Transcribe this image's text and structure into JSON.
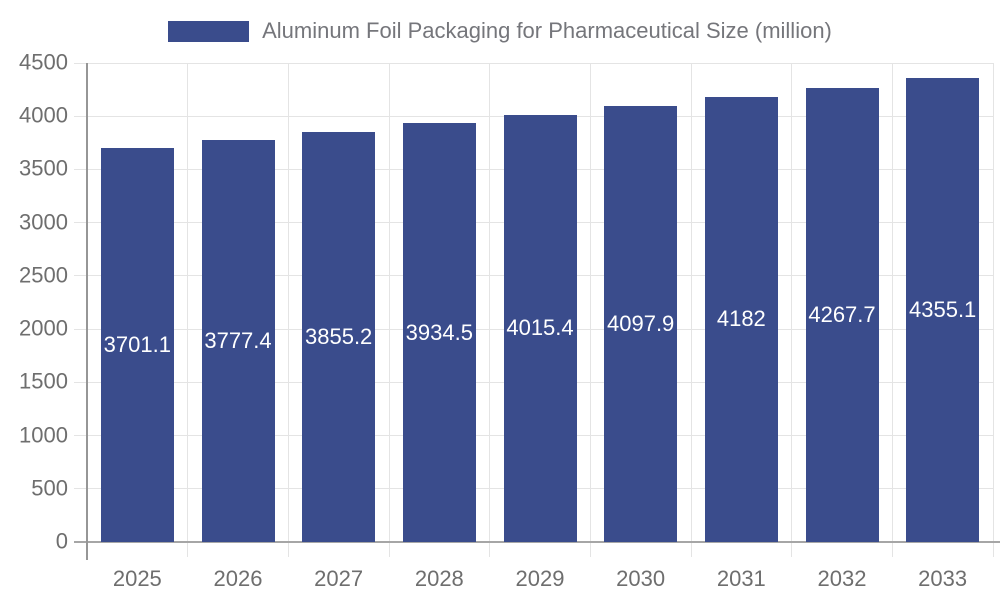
{
  "legend": {
    "series_label": "Aluminum Foil Packaging for Pharmaceutical Size (million)"
  },
  "chart_data": {
    "type": "bar",
    "title": "Aluminum Foil Packaging for Pharmaceutical Size (million)",
    "categories": [
      "2025",
      "2026",
      "2027",
      "2028",
      "2029",
      "2030",
      "2031",
      "2032",
      "2033"
    ],
    "values": [
      3701.1,
      3777.4,
      3855.2,
      3934.5,
      4015.4,
      4097.9,
      4182,
      4267.7,
      4355.1
    ],
    "value_labels": [
      "3701.1",
      "3777.4",
      "3855.2",
      "3934.5",
      "4015.4",
      "4097.9",
      "4182",
      "4267.7",
      "4355.1"
    ],
    "xlabel": "",
    "ylabel": "",
    "ylim": [
      0,
      4500
    ],
    "y_ticks": [
      0,
      500,
      1000,
      1500,
      2000,
      2500,
      3000,
      3500,
      4000,
      4500
    ],
    "grid": true,
    "legend_position": "top-center"
  },
  "colors": {
    "bar": "#3A4C8C",
    "grid_line": "#E4E4E4",
    "axis_line_x": "#A6A6A6",
    "axis_line_y": "#969696",
    "tick_text": "#6E6E6E",
    "legend_text": "#75767B",
    "value_text": "#FFFFFF",
    "background": "#FFFFFF"
  }
}
